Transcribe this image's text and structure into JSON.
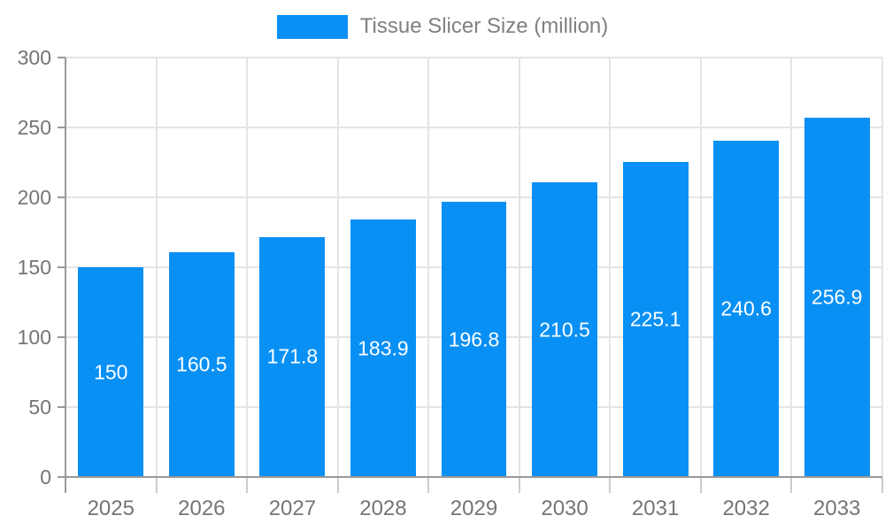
{
  "chart_data": {
    "type": "bar",
    "title": "Tissue Slicer Size (million)",
    "categories": [
      "2025",
      "2026",
      "2027",
      "2028",
      "2029",
      "2030",
      "2031",
      "2032",
      "2033"
    ],
    "values": [
      150,
      160.5,
      171.8,
      183.9,
      196.8,
      210.5,
      225.1,
      240.6,
      256.9
    ],
    "series": [
      {
        "name": "Tissue Slicer Size (million)",
        "values": [
          150,
          160.5,
          171.8,
          183.9,
          196.8,
          210.5,
          225.1,
          240.6,
          256.9
        ]
      }
    ],
    "xlabel": "",
    "ylabel": "",
    "ylim": [
      0,
      300
    ],
    "yticks": [
      0,
      50,
      100,
      150,
      200,
      250,
      300
    ],
    "grid": "on",
    "legend_position": "top-center",
    "bar_width_fraction": 0.72,
    "colors": {
      "bar": "#0990f5",
      "grid": "#e4e4e4",
      "axis": "#999999",
      "tick": "#cccccc",
      "axis_text": "#757575",
      "legend_text": "#808080",
      "value_text": "#ffffff",
      "background": "#ffffff"
    }
  }
}
